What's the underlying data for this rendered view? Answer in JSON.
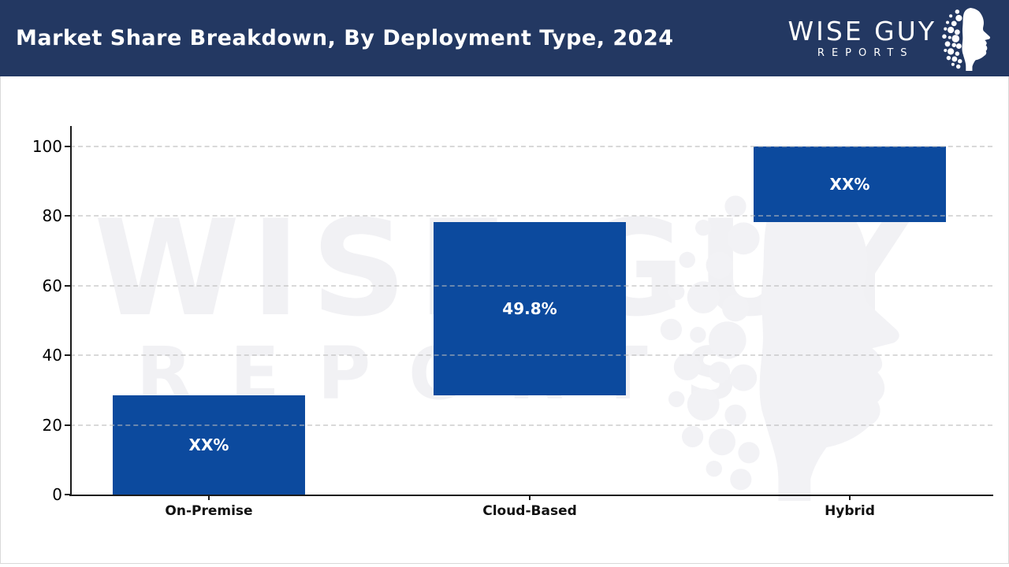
{
  "header": {
    "title": "Market Share Breakdown, By Deployment Type, 2024",
    "logo": {
      "line1": "WISE GUY",
      "line2": "REPORTS"
    }
  },
  "watermark": {
    "line1": "WISE GUY",
    "line2": "REPORTS"
  },
  "colors": {
    "header_bg": "#233862",
    "header_text": "#ffffff",
    "bar": "#0c4a9e",
    "bar_label": "#ffffff",
    "gridline": "#d9d9d9",
    "axis_text": "#000000",
    "watermark": "#f1f1f4"
  },
  "chart_data": {
    "type": "bar",
    "subtype": "stacked-waterfall",
    "title": "Market Share Breakdown, By Deployment Type, 2024",
    "categories": [
      "On-Premise",
      "Cloud-Based",
      "Hybrid"
    ],
    "bars": [
      {
        "category": "On-Premise",
        "start": 0,
        "end": 28.4,
        "value_label": "XX%"
      },
      {
        "category": "Cloud-Based",
        "start": 28.4,
        "end": 78.2,
        "value_label": "49.8%"
      },
      {
        "category": "Hybrid",
        "start": 78.2,
        "end": 100,
        "value_label": "XX%"
      }
    ],
    "yticks": [
      0,
      20,
      40,
      60,
      80,
      100
    ],
    "ylim": [
      0,
      106
    ],
    "xlabel": "",
    "ylabel": "",
    "grid": "horizontal-dashed-above-bars",
    "legend": "none"
  }
}
